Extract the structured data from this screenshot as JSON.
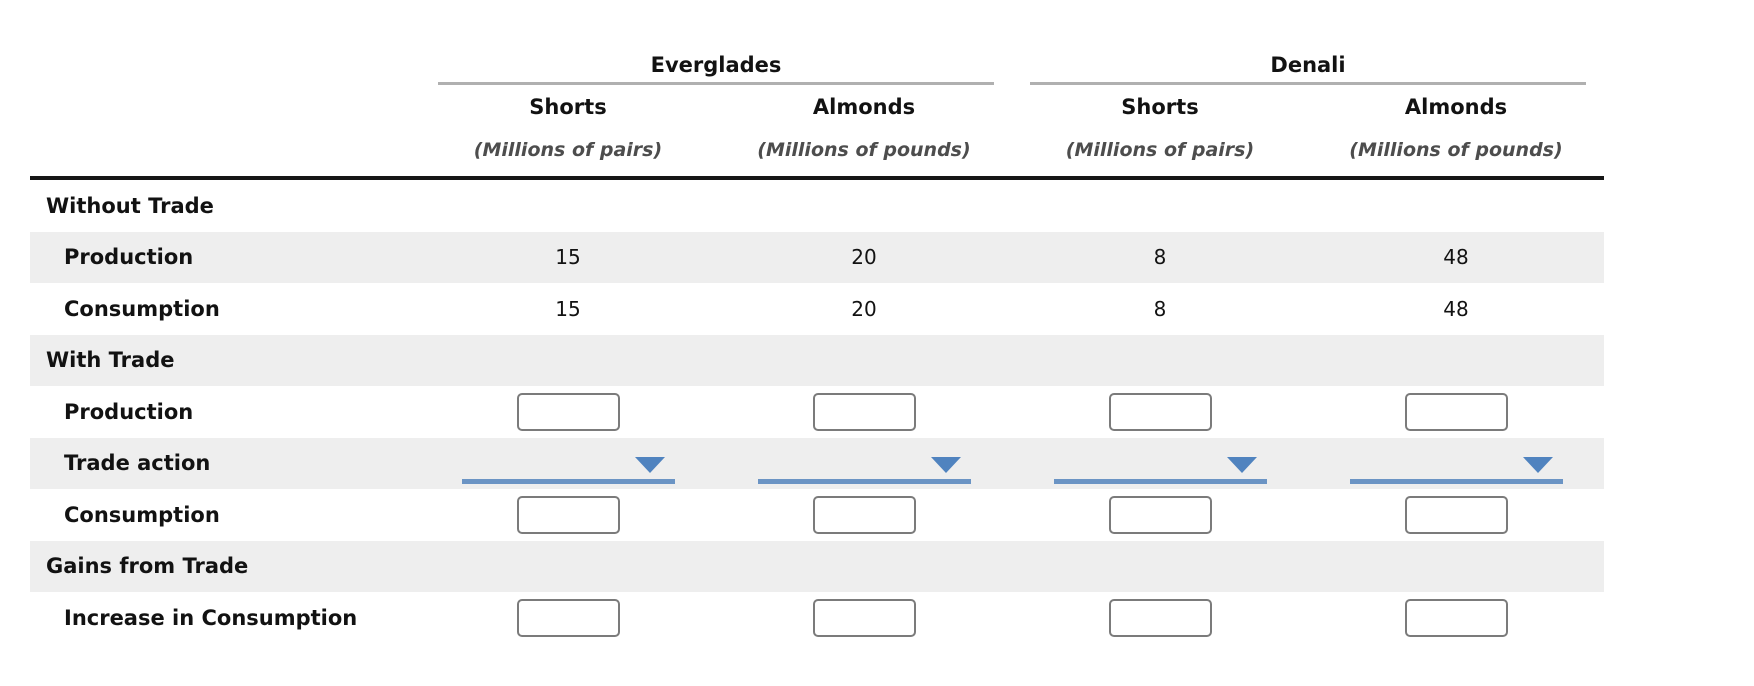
{
  "table": {
    "groups": [
      {
        "name": "Everglades",
        "columns": [
          {
            "label": "Shorts",
            "unit": "(Millions of pairs)"
          },
          {
            "label": "Almonds",
            "unit": "(Millions of pounds)"
          }
        ]
      },
      {
        "name": "Denali",
        "columns": [
          {
            "label": "Shorts",
            "unit": "(Millions of pairs)"
          },
          {
            "label": "Almonds",
            "unit": "(Millions of pounds)"
          }
        ]
      }
    ],
    "rows": [
      {
        "label": "Without Trade",
        "type": "section"
      },
      {
        "label": "Production",
        "type": "values",
        "values": [
          "15",
          "20",
          "8",
          "48"
        ]
      },
      {
        "label": "Consumption",
        "type": "values",
        "values": [
          "15",
          "20",
          "8",
          "48"
        ]
      },
      {
        "label": "With Trade",
        "type": "section"
      },
      {
        "label": "Production",
        "type": "inputs"
      },
      {
        "label": "Trade action",
        "type": "dropdowns"
      },
      {
        "label": "Consumption",
        "type": "inputs"
      },
      {
        "label": "Gains from Trade",
        "type": "section"
      },
      {
        "label": "Increase in Consumption",
        "type": "inputs"
      }
    ],
    "colors": {
      "stripe": "#eeeeee",
      "group_rule": "#b0b0b0",
      "heavy_rule": "#161616",
      "unit_text": "#4d4d4d",
      "input_border": "#7b7b7b",
      "dropdown_line": "#6b94c4",
      "dropdown_arrow": "#5083bf"
    }
  }
}
